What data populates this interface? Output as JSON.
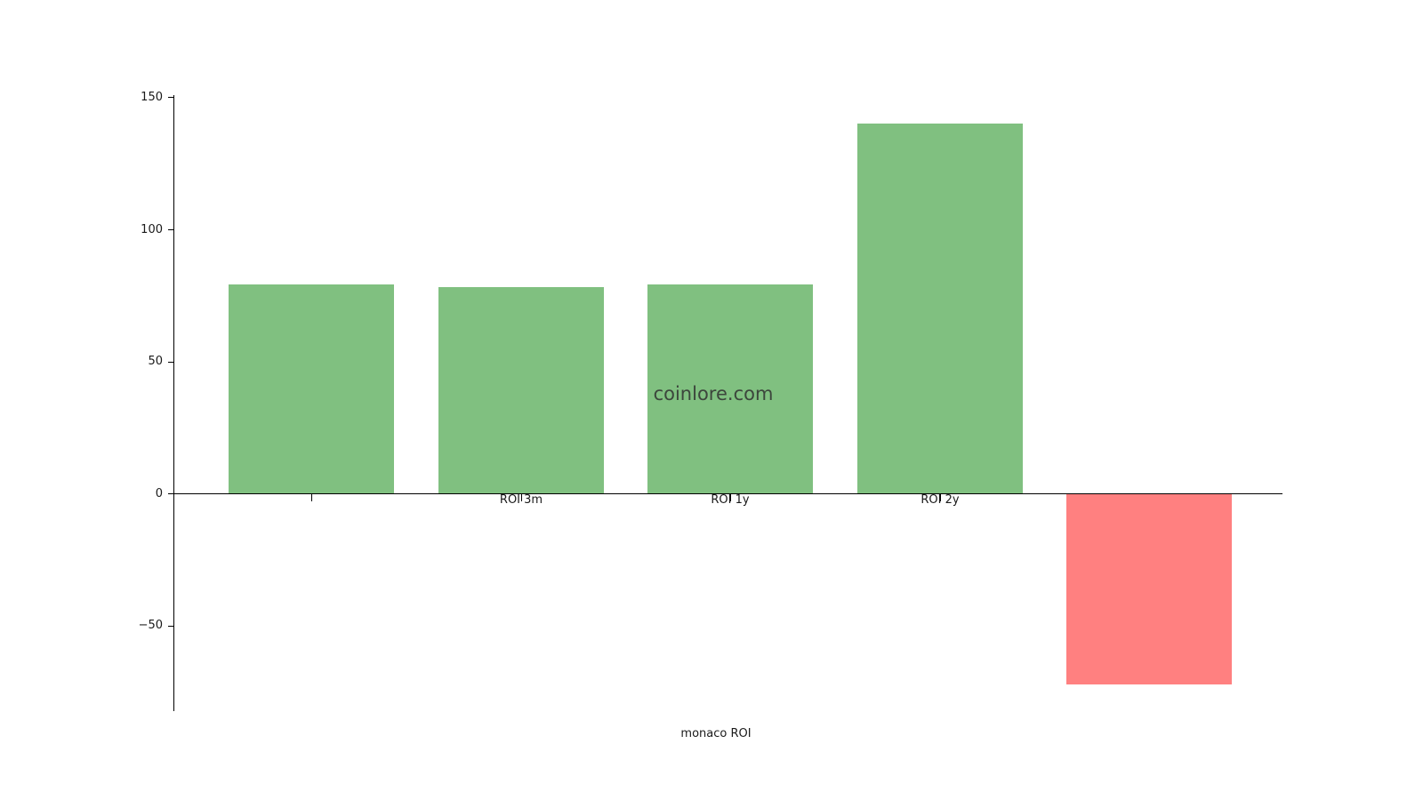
{
  "page": {
    "background_color": "#ffffff"
  },
  "watermark": {
    "text": "coinlore.com",
    "color": "#3c463c"
  },
  "chart_data": {
    "type": "bar",
    "title": "",
    "xlabel": "monaco ROI",
    "ylabel": "",
    "categories": [
      "",
      "ROI 3m",
      "ROI 1y",
      "ROI 2y",
      ""
    ],
    "values": [
      79,
      78,
      79,
      140,
      -72
    ],
    "positive_color": "#80c080",
    "negative_color": "#ff8080",
    "axis_color": "#000000",
    "tick_label_color": "#1a1a1a",
    "yticks": [
      150,
      100,
      50,
      0,
      -50
    ],
    "ylim": [
      -83,
      151
    ],
    "grid": false,
    "legend": null
  }
}
